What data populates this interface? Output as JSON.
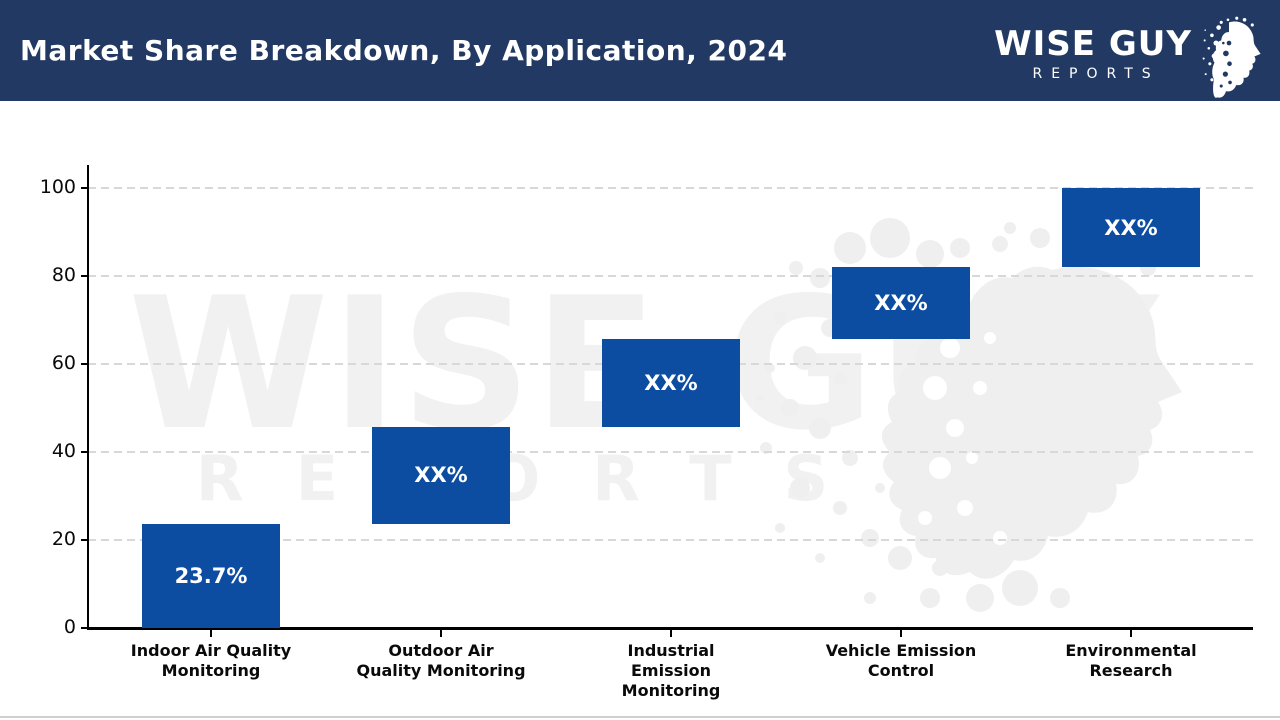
{
  "header": {
    "title": "Market Share Breakdown, By Application, 2024",
    "logo": {
      "name": "WISE GUY",
      "tagline": "REPORTS"
    }
  },
  "watermark": {
    "line1": "WISE GUY",
    "line2": "REPORTS"
  },
  "colors": {
    "header_bg": "#223A63",
    "bar": "#0C4DA2",
    "bar_label": "#FFFFFF",
    "axis": "#000000",
    "gridline": "#D8D8D8",
    "watermark": "#F1F1F1"
  },
  "chart_data": {
    "type": "bar",
    "subtype": "waterfall-stacked-steps",
    "title": "Market Share Breakdown, By Application, 2024",
    "unit": "percent",
    "categories": [
      [
        "Indoor Air Quality",
        "Monitoring"
      ],
      [
        "Outdoor Air",
        "Quality Monitoring"
      ],
      [
        "Industrial",
        "Emission",
        "Monitoring"
      ],
      [
        "Vehicle Emission",
        "Control"
      ],
      [
        "Environmental",
        "Research"
      ]
    ],
    "segments": [
      {
        "category": "Indoor Air Quality Monitoring",
        "start": 0,
        "end": 23.7,
        "value": 23.7,
        "label": "23.7%"
      },
      {
        "category": "Outdoor Air Quality Monitoring",
        "start": 23.7,
        "end": 45.7,
        "value": 22.0,
        "label": "XX%"
      },
      {
        "category": "Industrial Emission Monitoring",
        "start": 45.7,
        "end": 65.7,
        "value": 20.0,
        "label": "XX%"
      },
      {
        "category": "Vehicle Emission Control",
        "start": 65.7,
        "end": 82.0,
        "value": 16.3,
        "label": "XX%"
      },
      {
        "category": "Environmental Research",
        "start": 82.0,
        "end": 100.0,
        "value": 18.0,
        "label": "XX%"
      }
    ],
    "yticks": [
      0,
      20,
      40,
      60,
      80,
      100
    ],
    "ylim": [
      0,
      105
    ],
    "xlabel": "",
    "ylabel": "",
    "grid": "horizontal-dashed",
    "legend": "none"
  }
}
